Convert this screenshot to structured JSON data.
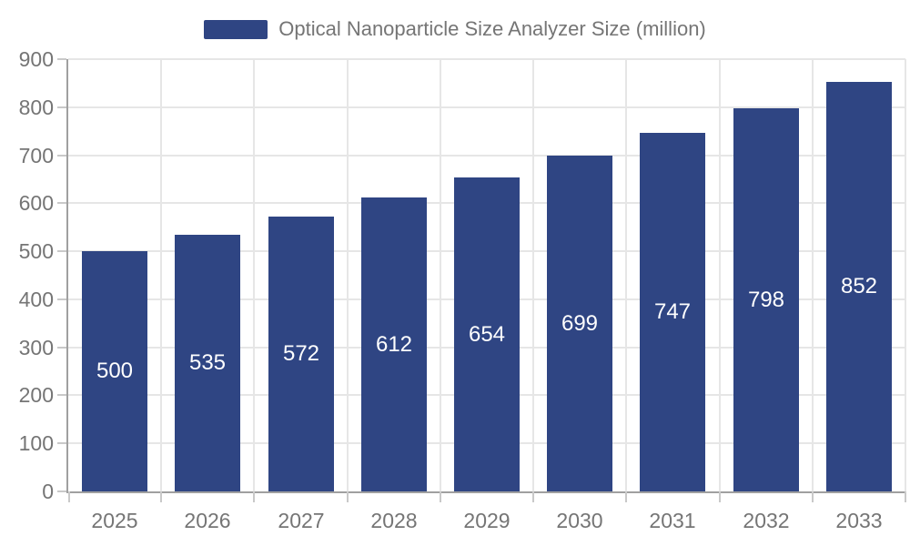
{
  "chart_data": {
    "type": "bar",
    "title": "Optical Nanoparticle Size Analyzer Size (million)",
    "categories": [
      "2025",
      "2026",
      "2027",
      "2028",
      "2029",
      "2030",
      "2031",
      "2032",
      "2033"
    ],
    "values": [
      500,
      535,
      572,
      612,
      654,
      699,
      747,
      798,
      852
    ],
    "xlabel": "",
    "ylabel": "",
    "ylim": [
      0,
      900
    ],
    "yticks": [
      0,
      100,
      200,
      300,
      400,
      500,
      600,
      700,
      800,
      900
    ],
    "grid": true,
    "legend_position": "top",
    "bar_labels_shown": true,
    "colors": {
      "bar": "#2f4583",
      "bar_label": "#ffffff",
      "axis_text": "#757575",
      "axis_line": "#a0a0a0",
      "tick": "#c9c9c9",
      "gridline": "#e6e6e6",
      "background": "#ffffff"
    }
  }
}
